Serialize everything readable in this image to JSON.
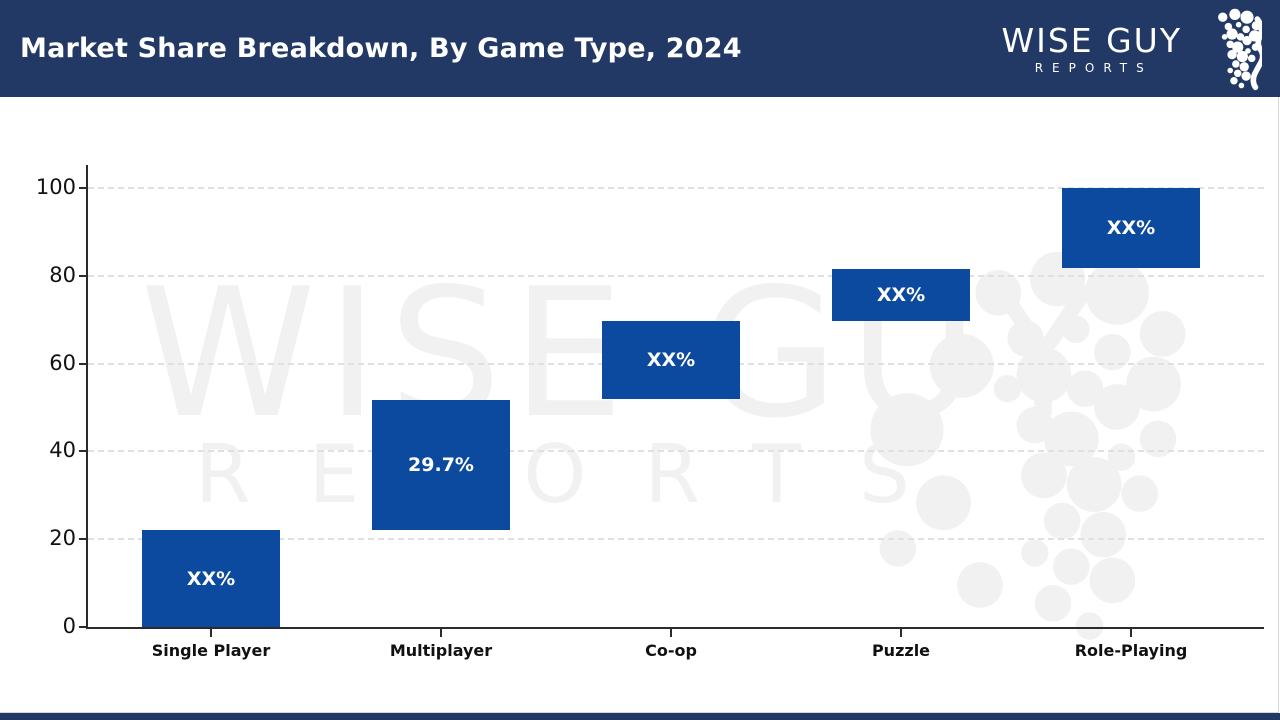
{
  "header": {
    "title": "Market Share Breakdown, By Game Type, 2024",
    "logo_line1": "WISE GUY",
    "logo_line2": "REPORTS"
  },
  "watermark": {
    "line1": "WISE GUY",
    "line2": "REPORTS"
  },
  "chart_data": {
    "type": "bar",
    "variant": "floating-waterfall",
    "title": "Market Share Breakdown, By Game Type, 2024",
    "categories": [
      "Single Player",
      "Multiplayer",
      "Co-op",
      "Puzzle",
      "Role-Playing"
    ],
    "segments": [
      {
        "category": "Single Player",
        "start": 0,
        "end": 22,
        "label": "XX%"
      },
      {
        "category": "Multiplayer",
        "start": 22,
        "end": 51.7,
        "label": "29.7%"
      },
      {
        "category": "Co-op",
        "start": 51.9,
        "end": 69.7,
        "label": "XX%"
      },
      {
        "category": "Puzzle",
        "start": 69.7,
        "end": 81.5,
        "label": "XX%"
      },
      {
        "category": "Role-Playing",
        "start": 81.8,
        "end": 100,
        "label": "XX%"
      }
    ],
    "yticks": [
      0,
      20,
      40,
      60,
      80,
      100
    ],
    "ylim": [
      0,
      105
    ],
    "xlabel": "",
    "ylabel": "",
    "grid": {
      "horizontal": true,
      "style": "dashed"
    },
    "legend": "none",
    "colors": {
      "bar": "#0B4A9E",
      "bar_label": "#FFFFFF",
      "axis": "#2B2B2B",
      "grid": "#E0E0E0",
      "header_bg": "#223966",
      "watermark": "#F1F1F1"
    }
  }
}
